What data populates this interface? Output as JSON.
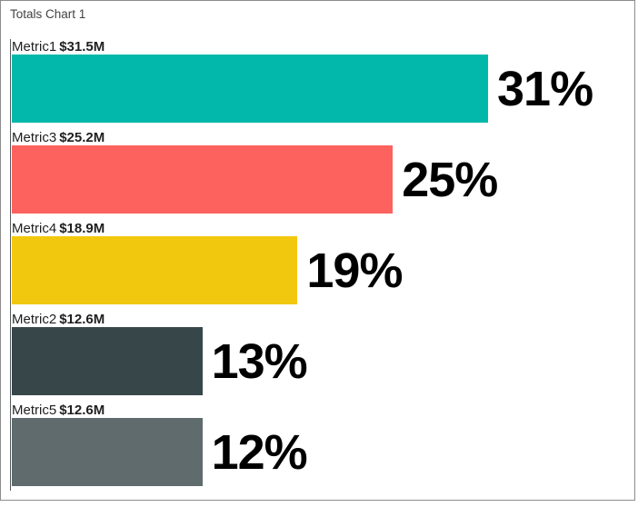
{
  "header": {
    "title": "Totals Chart 1"
  },
  "chart_data": {
    "type": "bar",
    "orientation": "horizontal",
    "title": "Totals Chart 1",
    "value_axis_visible": false,
    "category_axis_line": true,
    "sort": "descending by value",
    "items": [
      {
        "category": "Metric1",
        "value": 31.5,
        "value_label": "$31.5M",
        "percent": 31,
        "percent_label": "31%",
        "color": "#01B8AA"
      },
      {
        "category": "Metric3",
        "value": 25.2,
        "value_label": "$25.2M",
        "percent": 25,
        "percent_label": "25%",
        "color": "#FD625E"
      },
      {
        "category": "Metric4",
        "value": 18.9,
        "value_label": "$18.9M",
        "percent": 19,
        "percent_label": "19%",
        "color": "#F2C80F"
      },
      {
        "category": "Metric2",
        "value": 12.6,
        "value_label": "$12.6M",
        "percent": 13,
        "percent_label": "13%",
        "color": "#374649"
      },
      {
        "category": "Metric5",
        "value": 12.6,
        "value_label": "$12.6M",
        "percent": 12,
        "percent_label": "12%",
        "color": "#5F6B6D"
      }
    ]
  }
}
